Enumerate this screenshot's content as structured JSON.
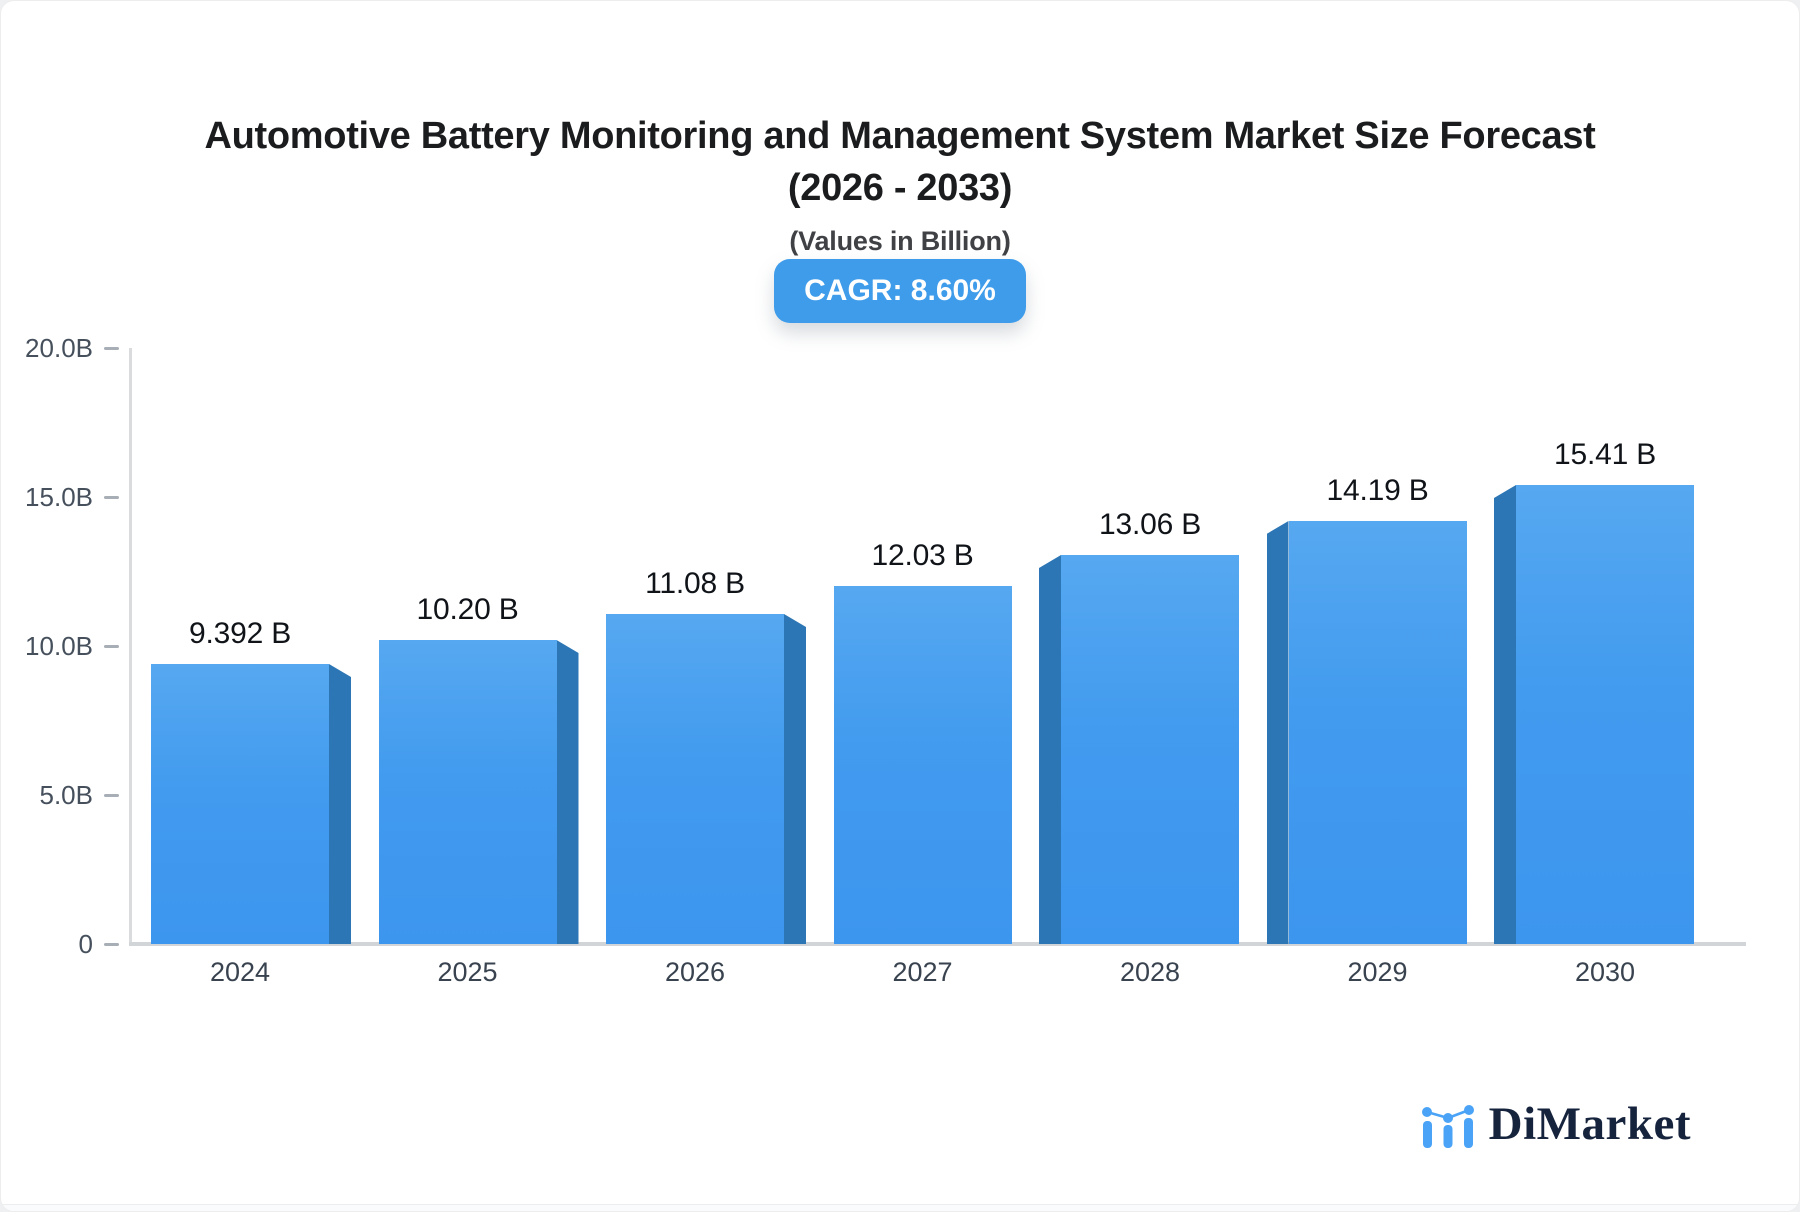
{
  "header": {
    "title_line1": "Automotive Battery Monitoring and Management System Market Size Forecast",
    "title_line2": "(2026 - 2033)",
    "subtitle": "(Values in Billion)",
    "cagr_badge": "CAGR: 8.60%"
  },
  "chart_data": {
    "type": "bar",
    "title": "Automotive Battery Monitoring and Management System Market Size Forecast (2026 - 2033)",
    "subtitle": "(Values in Billion)",
    "categories": [
      "2024",
      "2025",
      "2026",
      "2027",
      "2028",
      "2029",
      "2030"
    ],
    "values": [
      9.392,
      10.2,
      11.08,
      12.03,
      13.06,
      14.19,
      15.41
    ],
    "value_labels": [
      "9.392 B",
      "10.20 B",
      "11.08 B",
      "12.03 B",
      "13.06 B",
      "14.19 B",
      "15.41 B"
    ],
    "ylim": [
      0,
      20
    ],
    "ytick_values": [
      0,
      5,
      10,
      15,
      20
    ],
    "ytick_labels": [
      "0",
      "5.0B",
      "10.0B",
      "15.0B",
      "20.0B"
    ],
    "grid": false,
    "legend": "none",
    "bar_style": "3d",
    "colors": {
      "bar_top": "#56a8f0",
      "bar_bottom": "#3d96ee",
      "bar_side": "#2d76b5",
      "axis": "#d9dbdd",
      "tick_label": "#46505c",
      "value_label": "#101419"
    }
  },
  "footer": {
    "brand": "DiMarket"
  }
}
